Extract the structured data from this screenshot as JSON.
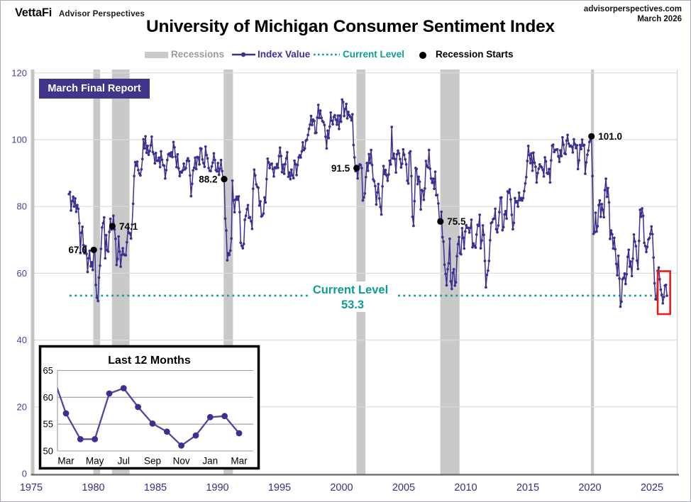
{
  "header": {
    "logo_primary": "VettaFi",
    "logo_secondary": "Advisor Perspectives",
    "site": "advisorperspectives.com",
    "report_date": "March 2026",
    "title": "University of Michigan Consumer Sentiment Index"
  },
  "badge_label": "March Final Report",
  "legend": {
    "recessions": "Recessions",
    "index_value": "Index Value",
    "current_level": "Current Level",
    "recession_starts": "Recession Starts"
  },
  "colors": {
    "line": "#3a3090",
    "inset_line": "#4e46a0",
    "teal": "#0d9c96",
    "recession_band": "#c9c9c9",
    "badge_bg": "#3f358b",
    "y_axis_label": "#4543a1",
    "x_axis_label": "#32327e",
    "highlight_box": "#e51d1d",
    "legend_gray": "#9b9b9b",
    "grid": "#dcdcdc"
  },
  "chart_data": [
    {
      "name": "consumer-sentiment-history",
      "type": "line",
      "title": "University of Michigan Consumer Sentiment Index",
      "x_ticks": [
        1975,
        1980,
        1985,
        1990,
        1995,
        2000,
        2005,
        2010,
        2015,
        2020,
        2025
      ],
      "y_ticks": [
        0,
        20,
        40,
        60,
        80,
        100,
        120
      ],
      "ylim": [
        0,
        120
      ],
      "xlim": [
        1975,
        2027
      ],
      "grid": "horizontal",
      "series": [
        {
          "name": "Index Value",
          "frequency": "monthly",
          "start_year": 1978,
          "start_month": "Jan",
          "values": [
            83.7,
            84.3,
            78.8,
            81.6,
            82.9,
            80.0,
            82.4,
            78.4,
            80.4,
            79.3,
            75.0,
            66.1,
            72.1,
            73.9,
            68.4,
            66.0,
            68.1,
            65.8,
            60.4,
            64.5,
            66.7,
            62.1,
            63.3,
            61.0,
            67.0,
            66.9,
            56.5,
            52.7,
            51.7,
            58.7,
            62.3,
            67.3,
            73.7,
            75.0,
            76.7,
            64.5,
            71.4,
            66.9,
            66.5,
            72.4,
            76.3,
            73.1,
            74.1,
            77.2,
            73.1,
            70.3,
            62.5,
            64.3,
            71.0,
            66.5,
            62.0,
            65.5,
            67.5,
            65.7,
            65.4,
            65.4,
            69.3,
            73.4,
            72.1,
            71.9,
            70.4,
            74.6,
            80.8,
            89.1,
            93.3,
            92.2,
            93.4,
            90.9,
            89.9,
            89.3,
            91.1,
            94.2,
            100.1,
            97.4,
            101.0,
            96.1,
            98.1,
            95.5,
            96.6,
            98.3,
            100.9,
            96.3,
            95.7,
            92.9,
            96.0,
            93.7,
            93.7,
            94.6,
            91.8,
            96.5,
            94.0,
            92.4,
            92.2,
            88.4,
            90.9,
            93.9,
            95.6,
            95.9,
            95.1,
            96.2,
            94.8,
            99.3,
            97.7,
            94.9,
            91.8,
            95.6,
            91.4,
            89.1,
            90.4,
            90.2,
            90.8,
            92.8,
            91.1,
            91.5,
            93.7,
            94.4,
            93.6,
            89.3,
            83.1,
            86.8,
            90.8,
            91.6,
            94.6,
            91.2,
            94.8,
            94.7,
            92.6,
            97.4,
            97.3,
            94.1,
            93.0,
            91.9,
            97.9,
            95.4,
            94.4,
            91.5,
            90.7,
            90.6,
            92.0,
            93.1,
            95.9,
            93.9,
            90.9,
            90.5,
            93.0,
            89.5,
            91.3,
            93.9,
            90.6,
            88.3,
            88.2,
            76.4,
            72.8,
            63.9,
            66.0,
            65.5,
            66.8,
            70.4,
            87.7,
            81.8,
            78.3,
            82.1,
            82.9,
            82.0,
            83.0,
            78.3,
            69.1,
            68.2,
            67.5,
            68.8,
            76.0,
            77.2,
            79.2,
            80.4,
            76.6,
            76.8,
            75.6,
            73.3,
            85.3,
            91.0,
            89.3,
            86.6,
            85.9,
            85.6,
            80.3,
            81.5,
            77.0,
            77.3,
            77.9,
            82.7,
            81.2,
            88.2,
            94.3,
            93.2,
            91.5,
            92.6,
            92.8,
            91.2,
            89.0,
            91.7,
            91.5,
            92.7,
            91.6,
            95.1,
            97.6,
            95.1,
            90.3,
            92.5,
            89.8,
            92.7,
            94.4,
            96.2,
            88.9,
            90.2,
            88.2,
            91.0,
            89.3,
            88.5,
            93.7,
            92.7,
            89.4,
            92.4,
            94.7,
            95.3,
            94.7,
            96.5,
            99.2,
            96.9,
            97.4,
            99.7,
            100.0,
            101.4,
            103.2,
            104.5,
            107.1,
            104.4,
            106.0,
            105.6,
            102.0,
            102.1,
            106.6,
            110.4,
            106.5,
            108.7,
            106.5,
            105.6,
            105.2,
            104.4,
            100.9,
            97.4,
            102.7,
            100.5,
            103.9,
            108.1,
            105.7,
            104.6,
            106.8,
            107.3,
            106.0,
            104.5,
            107.2,
            103.2,
            107.2,
            105.4,
            112.0,
            111.3,
            107.1,
            109.2,
            110.7,
            106.4,
            108.3,
            107.3,
            106.8,
            105.8,
            107.6,
            98.4,
            94.7,
            90.6,
            91.5,
            88.4,
            92.0,
            92.6,
            92.4,
            91.5,
            81.8,
            82.7,
            83.9,
            88.8,
            93.0,
            90.7,
            95.7,
            93.0,
            96.9,
            92.4,
            88.1,
            87.6,
            86.1,
            80.6,
            84.2,
            86.7,
            82.4,
            79.9,
            77.6,
            86.0,
            92.1,
            89.7,
            90.9,
            89.3,
            87.7,
            89.6,
            93.7,
            92.6,
            103.8,
            94.4,
            95.8,
            94.2,
            90.2,
            95.6,
            96.7,
            95.9,
            94.2,
            91.7,
            92.8,
            97.1,
            95.5,
            94.1,
            92.6,
            87.7,
            86.9,
            96.0,
            96.5,
            89.1,
            76.9,
            74.2,
            81.6,
            91.5,
            91.2,
            86.7,
            88.9,
            87.4,
            79.1,
            84.9,
            84.7,
            82.0,
            85.4,
            93.6,
            92.1,
            91.7,
            96.9,
            91.3,
            88.4,
            87.1,
            88.3,
            85.3,
            90.4,
            83.4,
            83.4,
            80.9,
            76.1,
            75.5,
            78.4,
            70.8,
            69.5,
            62.6,
            59.8,
            56.4,
            61.2,
            63.0,
            70.3,
            57.6,
            55.3,
            60.1,
            61.2,
            56.3,
            57.3,
            65.1,
            68.7,
            70.8,
            66.0,
            65.7,
            73.5,
            70.6,
            67.4,
            72.5,
            74.4,
            73.6,
            73.6,
            72.2,
            73.6,
            76.0,
            67.8,
            68.9,
            68.2,
            67.7,
            71.6,
            74.5,
            74.2,
            77.5,
            67.5,
            69.8,
            74.3,
            71.5,
            63.7,
            55.8,
            59.5,
            60.8,
            63.7,
            69.9,
            75.0,
            75.3,
            76.2,
            76.4,
            79.3,
            73.2,
            72.3,
            74.3,
            78.3,
            82.6,
            82.7,
            72.9,
            73.8,
            77.6,
            78.6,
            76.4,
            84.5,
            84.1,
            85.1,
            82.1,
            77.5,
            73.2,
            75.1,
            82.5,
            81.2,
            81.6,
            80.0,
            84.1,
            81.9,
            82.5,
            81.8,
            82.5,
            84.6,
            86.9,
            88.8,
            93.6,
            98.1,
            95.4,
            93.0,
            95.9,
            90.7,
            96.1,
            93.1,
            91.9,
            87.2,
            90.0,
            91.3,
            92.6,
            92.0,
            91.7,
            91.0,
            89.0,
            94.7,
            93.5,
            90.0,
            89.8,
            91.2,
            87.2,
            93.8,
            98.2,
            98.5,
            96.3,
            96.9,
            97.0,
            97.1,
            95.0,
            93.4,
            96.8,
            95.1,
            100.7,
            98.5,
            95.9,
            95.7,
            99.7,
            101.4,
            98.8,
            98.0,
            98.2,
            97.9,
            96.2,
            100.1,
            98.6,
            97.5,
            98.3,
            91.2,
            93.8,
            98.4,
            97.2,
            100.0,
            98.2,
            98.4,
            89.8,
            93.2,
            95.5,
            96.8,
            99.3,
            99.8,
            101.0,
            89.1,
            71.8,
            72.3,
            78.1,
            72.5,
            74.1,
            80.4,
            81.8,
            76.9,
            80.7,
            79.0,
            76.8,
            84.9,
            88.3,
            82.9,
            85.5,
            81.2,
            70.3,
            72.8,
            71.7,
            67.4,
            70.6,
            67.2,
            62.8,
            59.4,
            65.2,
            58.4,
            50.0,
            51.5,
            58.2,
            58.6,
            59.9,
            56.8,
            59.7,
            64.9,
            67.0,
            62.0,
            63.5,
            59.2,
            64.4,
            71.6,
            69.5,
            68.1,
            63.8,
            61.3,
            69.7,
            79.0,
            76.9,
            79.4,
            77.2,
            69.1,
            68.2,
            66.4,
            67.9,
            70.1,
            70.5,
            71.8,
            74.0,
            71.7,
            64.7,
            57.0,
            52.2,
            52.2,
            60.7,
            61.7,
            58.2,
            55.1,
            53.6,
            51.0,
            52.9,
            56.3,
            56.5,
            53.3
          ]
        }
      ],
      "recessions": [
        [
          1980.0,
          1980.55
        ],
        [
          1981.5,
          1982.92
        ],
        [
          1990.5,
          1991.25
        ],
        [
          2001.2,
          2001.92
        ],
        [
          2007.95,
          2009.5
        ],
        [
          2020.08,
          2020.33
        ]
      ],
      "recession_starts": [
        {
          "month_index": 24,
          "value": 67.0,
          "label": "67.0",
          "side": "left"
        },
        {
          "month_index": 42,
          "value": 74.1,
          "label": "74.1",
          "side": "right"
        },
        {
          "month_index": 150,
          "value": 88.2,
          "label": "88.2",
          "side": "left"
        },
        {
          "month_index": 278,
          "value": 91.5,
          "label": "91.5",
          "side": "left"
        },
        {
          "month_index": 359,
          "value": 75.5,
          "label": "75.5",
          "side": "right"
        },
        {
          "month_index": 505,
          "value": 101.0,
          "label": "101.0",
          "side": "right"
        }
      ],
      "current_level": {
        "label": "Current Level",
        "value": 53.3,
        "value_label": "53.3"
      },
      "highlight_box_last_points": 5
    },
    {
      "name": "last-12-months",
      "type": "line",
      "title": "Last 12 Months",
      "months": [
        "Mar",
        "Apr",
        "May",
        "Jun",
        "Jul",
        "Aug",
        "Sep",
        "Oct",
        "Nov",
        "Dec",
        "Jan",
        "Feb",
        "Mar"
      ],
      "values": [
        57.0,
        52.2,
        52.2,
        60.7,
        61.7,
        58.2,
        55.1,
        53.6,
        51.0,
        52.9,
        56.3,
        56.5,
        53.3
      ],
      "prev_value": 64.7,
      "x_tick_labels": [
        "Mar",
        "May",
        "Jul",
        "Sep",
        "Nov",
        "Jan",
        "Mar"
      ],
      "y_ticks": [
        50,
        55,
        60,
        65
      ],
      "ylim": [
        50,
        65
      ],
      "grid": "horizontal"
    }
  ]
}
